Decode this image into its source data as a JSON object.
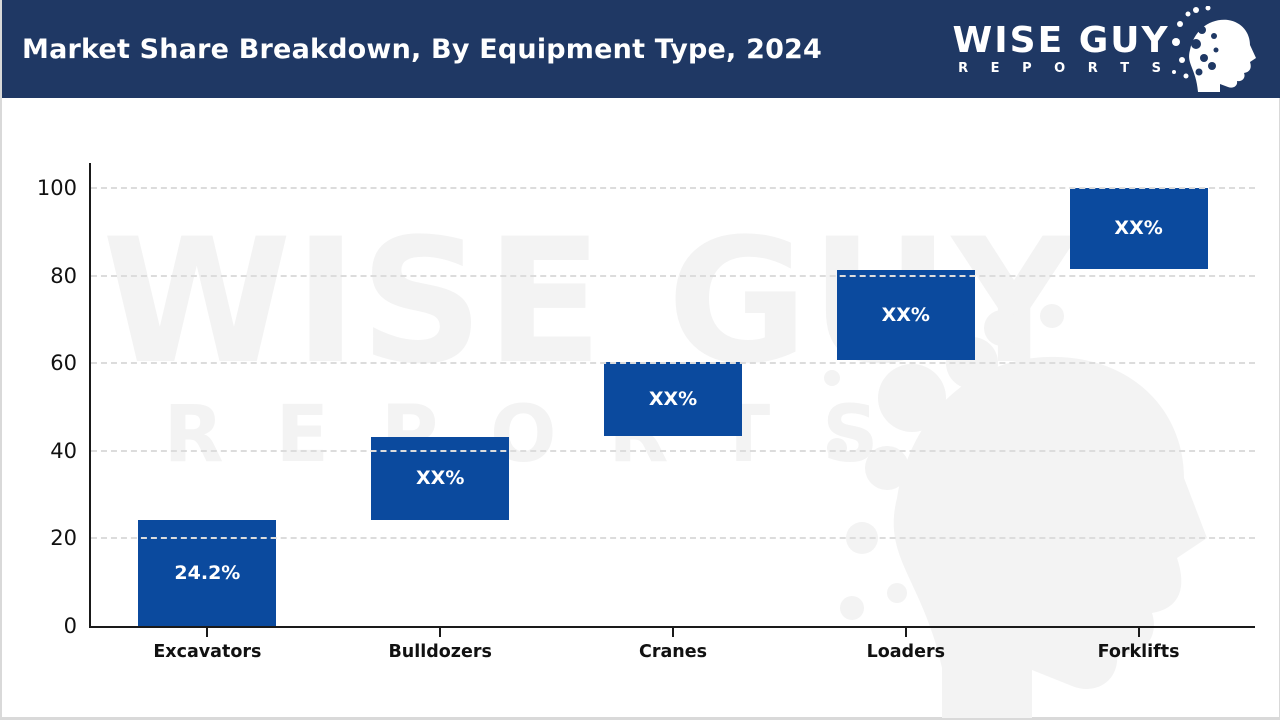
{
  "header": {
    "title": "Market Share Breakdown, By Equipment Type, 2024",
    "logo": {
      "line1": "WISE GUY",
      "line2": "R E P O R T S"
    }
  },
  "watermark": {
    "line1": "WISE GUY",
    "line2": "REPORTS"
  },
  "colors": {
    "header_bg": "#1f3864",
    "bar": "#0b4a9e",
    "axis": "#1a1a1a",
    "gridline": "#dcdcdc",
    "bar_label_text": "#ffffff",
    "watermark": "#f3f3f3"
  },
  "chart_data": {
    "type": "bar",
    "variant": "waterfall",
    "title": "Market Share Breakdown, By Equipment Type, 2024",
    "xlabel": "",
    "ylabel": "",
    "categories": [
      "Excavators",
      "Bulldozers",
      "Cranes",
      "Loaders",
      "Forklifts"
    ],
    "bars": [
      {
        "category": "Excavators",
        "start": 0,
        "end": 24.2,
        "label": "24.2%"
      },
      {
        "category": "Bulldozers",
        "start": 24.2,
        "end": 43.2,
        "label": "XX%"
      },
      {
        "category": "Cranes",
        "start": 43.4,
        "end": 60.2,
        "label": "XX%"
      },
      {
        "category": "Loaders",
        "start": 60.8,
        "end": 81.2,
        "label": "XX%"
      },
      {
        "category": "Forklifts",
        "start": 81.6,
        "end": 100,
        "label": "XX%"
      }
    ],
    "yticks": [
      0,
      20,
      40,
      60,
      80,
      100
    ],
    "ylim": [
      0,
      105
    ],
    "grid": "horizontal-dashed",
    "legend": "none"
  }
}
